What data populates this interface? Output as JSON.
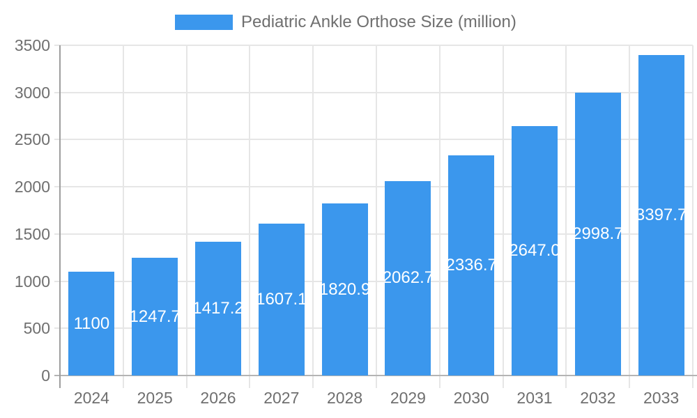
{
  "chart_data": {
    "type": "bar",
    "legend": "Pediatric Ankle Orthose Size (million)",
    "legend_position": "top",
    "categories": [
      "2024",
      "2025",
      "2026",
      "2027",
      "2028",
      "2029",
      "2030",
      "2031",
      "2032",
      "2033"
    ],
    "values": [
      1100,
      1247.7,
      1417.2,
      1607.1,
      1820.9,
      2062.7,
      2336.7,
      2647.0,
      2998.7,
      3397.7
    ],
    "value_labels": [
      "1100",
      "1247.7",
      "1417.2",
      "1607.1",
      "1820.9",
      "2062.7",
      "2336.7",
      "2647.0",
      "2998.7",
      "3397.7"
    ],
    "xlabel": "",
    "ylabel": "",
    "ylim": [
      0,
      3500
    ],
    "y_tick_step": 500,
    "y_ticks": [
      "0",
      "500",
      "1000",
      "1500",
      "2000",
      "2500",
      "3000",
      "3500"
    ],
    "grid": true,
    "colors": {
      "bar": "#3b97ed",
      "grid": "#e6e6e6",
      "baseline": "#b4b4b4",
      "axis": "#9e9e9e",
      "tick_text": "#6f6f6f",
      "bar_label": "#ffffff",
      "background": "#ffffff"
    }
  }
}
